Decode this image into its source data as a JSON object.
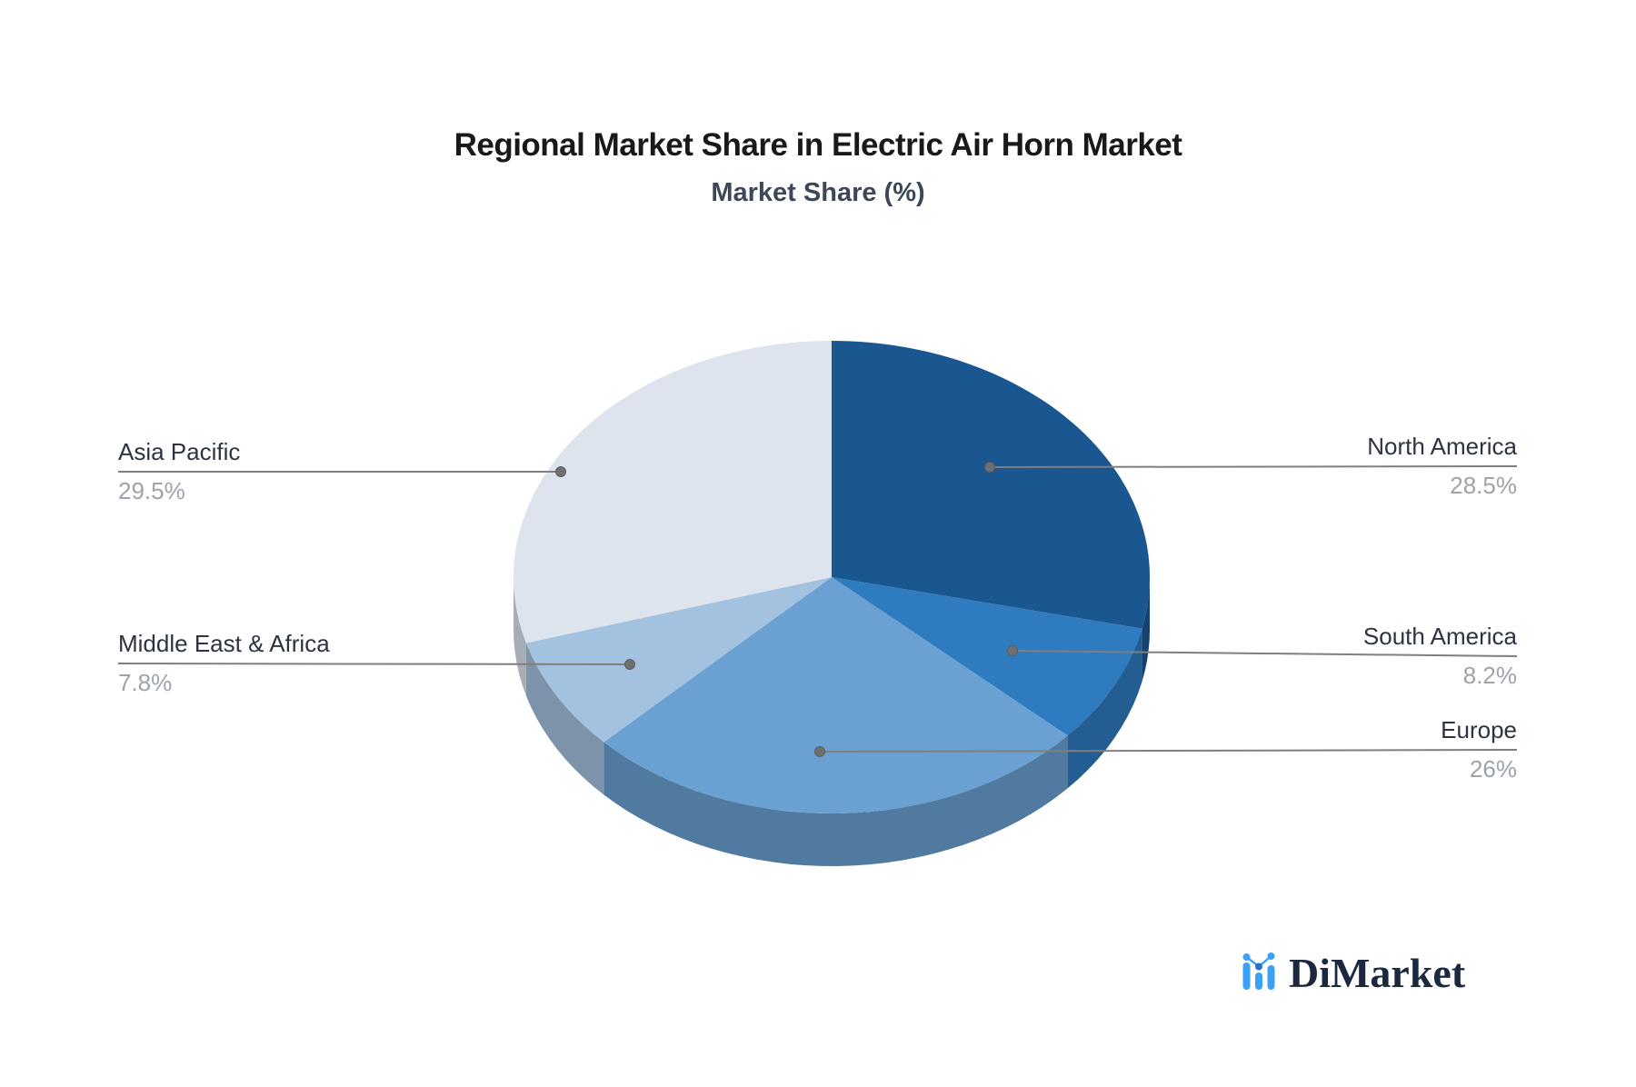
{
  "title": "Regional Market Share in Electric Air Horn Market",
  "subtitle": "Market Share (%)",
  "chart_data": {
    "type": "pie",
    "style": "3d-pie",
    "unit": "percent",
    "rotation": "starts at 12 o'clock, clockwise",
    "legend": "none (callout labels with leader lines)",
    "slices": [
      {
        "name": "North America",
        "value": 28.5,
        "display": "28.5%",
        "color": "#1A5791",
        "side": "right"
      },
      {
        "name": "South America",
        "value": 8.2,
        "display": "8.2%",
        "color": "#2F7BBF",
        "side": "right"
      },
      {
        "name": "Europe",
        "value": 26,
        "display": "26%",
        "color": "#6BA0D3",
        "side": "right"
      },
      {
        "name": "Middle East & Africa",
        "value": 7.8,
        "display": "7.8%",
        "color": "#A3C2DF",
        "side": "left"
      },
      {
        "name": "Asia Pacific",
        "value": 29.5,
        "display": "29.5%",
        "color": "#DDE4EE",
        "side": "left"
      }
    ],
    "label_text_color": "#2B3440",
    "value_text_color": "#9CA3AA",
    "leader_line_color": "#7F7F7F"
  },
  "branding": {
    "logo_text": "DiMarket",
    "logo_text_color": "#1B2940",
    "logo_icon": "bar-line-chart-icon",
    "logo_icon_color": "#3BA1F6"
  }
}
